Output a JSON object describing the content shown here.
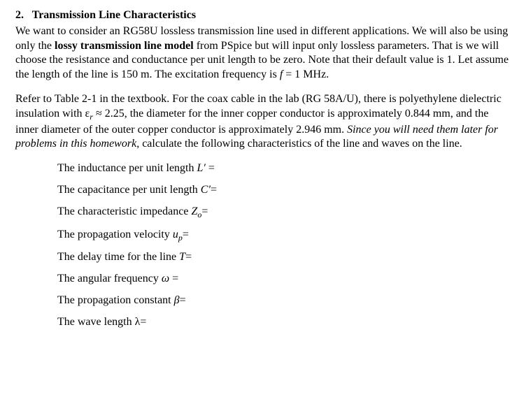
{
  "heading": {
    "number": "2.",
    "title": "Transmission Line Characteristics"
  },
  "para1": {
    "t1": "We want to consider an RG58U lossless transmission line used in different applications. We will also be using only the ",
    "bold": "lossy transmission line model",
    "t2": " from PSpice but will input only lossless parameters. That is we will choose the resistance and conductance per unit length to be zero. Note that their default value is 1. Let assume the length of the line is 150 m. The excitation frequency is ",
    "freq_var": "f",
    "freq_eq": " = 1 MHz."
  },
  "para2": {
    "t1": "Refer to Table 2-1 in the textbook. For the coax cable in the lab (RG 58A/U), there is polyethylene dielectric insulation with ε",
    "eps_sub": "r",
    "t2": " ≈ 2.25,  the diameter for the inner copper conductor is approximately 0.844 mm, and the inner diameter of the outer copper conductor is approximately 2.946 mm.  ",
    "italic": "Since you will need them later for problems in this homework",
    "t3": ", calculate the following characteristics of the line and waves on the line."
  },
  "items": {
    "l1": {
      "pre": "The inductance per unit length ",
      "var": "L′",
      "eq": " ="
    },
    "l2": {
      "pre": "The capacitance per unit length ",
      "var": "C′",
      "eq": "="
    },
    "l3": {
      "pre": "The characteristic impedance ",
      "var": "Z",
      "sub": "o",
      "eq": "="
    },
    "l4": {
      "pre": "The propagation velocity ",
      "var": "u",
      "sub": "p",
      "eq": "="
    },
    "l5": {
      "pre": "The delay time for the line ",
      "var": "T",
      "eq": "="
    },
    "l6": {
      "pre": "The angular frequency ",
      "var": "ω ",
      "eq": "="
    },
    "l7": {
      "pre": "The propagation constant ",
      "var": "β",
      "eq": "="
    },
    "l8": {
      "pre": "The wave length ",
      "var": "λ",
      "eq": "="
    }
  }
}
